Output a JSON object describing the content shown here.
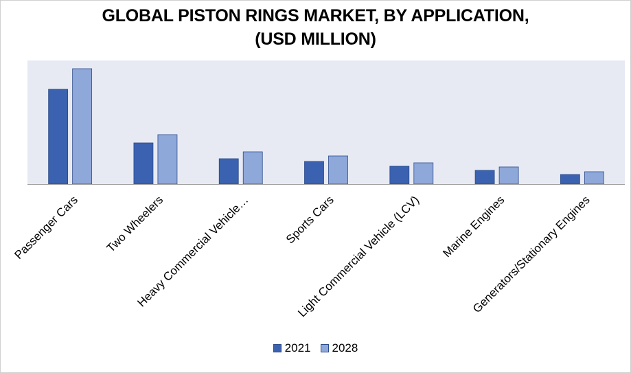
{
  "chart_data": {
    "type": "bar",
    "title": "GLOBAL PISTON RINGS MARKET, BY APPLICATION,",
    "subtitle": "(USD MILLION)",
    "categories": [
      "Passenger Cars",
      "Two Wheelers",
      "Heavy Commercial Vehicle…",
      "Sports Cars",
      "Light Commercial Vehicle (LCV)",
      "Marine Engines",
      "Generators/Stationary Engines"
    ],
    "series": [
      {
        "name": "2021",
        "color": "#3a62b0",
        "values": [
          138,
          60,
          37,
          33,
          26,
          20,
          14
        ]
      },
      {
        "name": "2028",
        "color": "#8fa8da",
        "values": [
          168,
          72,
          47,
          41,
          31,
          25,
          18
        ]
      }
    ],
    "ylim": [
      0,
      180
    ],
    "grid": false,
    "legend_position": "bottom",
    "plot_background": "#e8eaf3"
  }
}
